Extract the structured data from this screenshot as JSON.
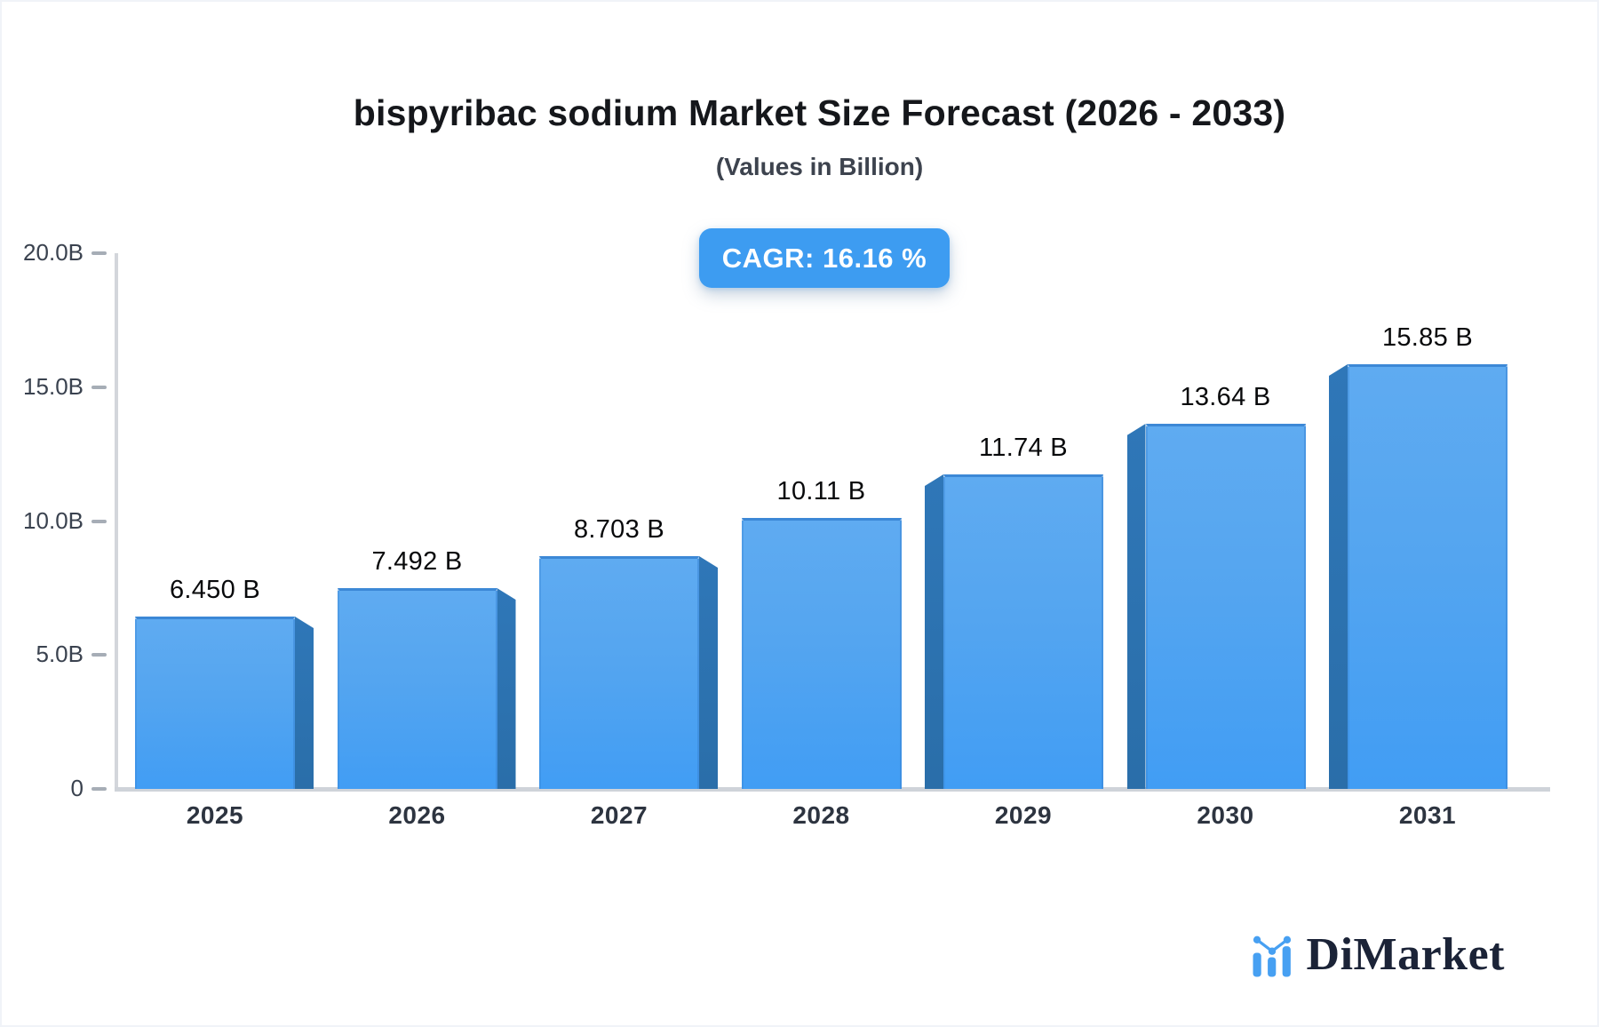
{
  "header": {
    "title": "bispyribac sodium Market Size Forecast (2026 - 2033)",
    "subtitle": "(Values in Billion)"
  },
  "badge": {
    "label": "CAGR: 16.16 %",
    "bg_color": "#3d9cf1",
    "text_color": "#ffffff"
  },
  "chart_data": {
    "type": "bar",
    "title": "bispyribac sodium Market Size Forecast (2026 - 2033)",
    "subtitle": "(Values in Billion)",
    "unit": "Billion",
    "categories": [
      "2025",
      "2026",
      "2027",
      "2028",
      "2029",
      "2030",
      "2031"
    ],
    "values": [
      6.45,
      7.492,
      8.703,
      10.11,
      11.74,
      13.64,
      15.85
    ],
    "value_labels": [
      "6.450 B",
      "7.492 B",
      "8.703 B",
      "10.11 B",
      "11.74 B",
      "13.64 B",
      "15.85 B"
    ],
    "ylim": [
      0,
      20
    ],
    "y_ticks": [
      {
        "v": 0,
        "label": "0"
      },
      {
        "v": 5,
        "label": "5.0B"
      },
      {
        "v": 10,
        "label": "10.0B"
      },
      {
        "v": 15,
        "label": "15.0B"
      },
      {
        "v": 20,
        "label": "20.0B"
      }
    ],
    "grid": false,
    "legend": "none",
    "style_3d": "center-perspective extruded bars",
    "colors": {
      "bar_face_top": "#5fabf1",
      "bar_face_bottom": "#419df4",
      "bar_edge": "#3c88d6",
      "bar_side": "#2d73b2",
      "axis": "#d2d6db",
      "tick": "#a6adb6",
      "value_text": "#08090b",
      "axis_text": "#3a424f"
    }
  },
  "logo": {
    "text": "DiMarket",
    "icon": "bar-chart-sparkline-icon",
    "icon_color": "#47a0f2",
    "text_color": "#1b2337"
  }
}
